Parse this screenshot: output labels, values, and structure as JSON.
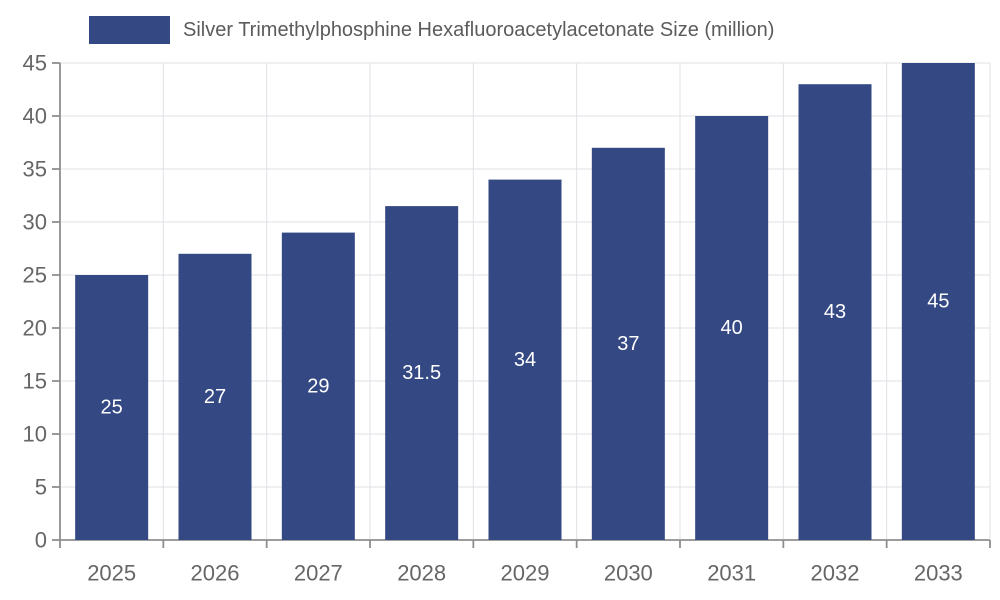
{
  "chart_data": {
    "type": "bar",
    "title": "Silver Trimethylphosphine Hexafluoroacetylacetonate Size (million)",
    "categories": [
      "2025",
      "2026",
      "2027",
      "2028",
      "2029",
      "2030",
      "2031",
      "2032",
      "2033"
    ],
    "values": [
      25,
      27,
      29,
      31.5,
      34,
      37,
      40,
      43,
      45
    ],
    "value_labels": [
      "25",
      "27",
      "29",
      "31.5",
      "34",
      "37",
      "40",
      "43",
      "45"
    ],
    "xlabel": "",
    "ylabel": "",
    "ylim": [
      0,
      45
    ],
    "ytick_step": 5,
    "ytick_labels": [
      "0",
      "5",
      "10",
      "15",
      "20",
      "25",
      "30",
      "35",
      "40",
      "45"
    ],
    "grid": true,
    "legend_position": "top-left",
    "bar_color": "#344883",
    "value_label_color": "#ffffff",
    "axis_text_color": "#666666",
    "legend_text_color": "#5b5b5b"
  }
}
